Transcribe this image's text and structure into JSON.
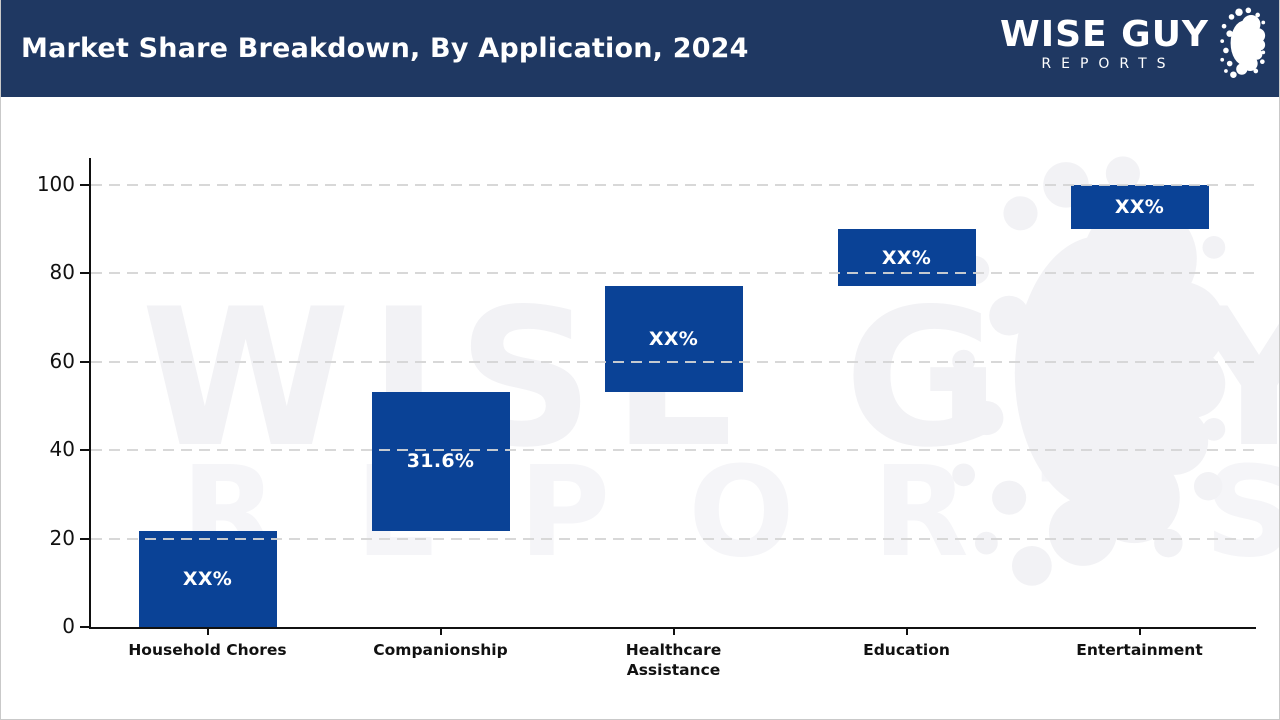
{
  "header": {
    "logo": {
      "line1": "WISE GUY",
      "line2": "REPORTS",
      "icon": "dotted-head-profile"
    }
  },
  "watermark": {
    "line1": "WISE GUY",
    "line2": "REPORTS"
  },
  "colors": {
    "header_bg": "#1f3862",
    "bar": "#0a4296",
    "gridline": "#d5d5d5",
    "watermark": "#f2f2f5",
    "axis": "#111111",
    "bar_label_text": "#ffffff"
  },
  "chart_data": {
    "type": "bar",
    "subtype": "floating-waterfall",
    "title": "Market Share Breakdown, By Application, 2024",
    "categories": [
      "Household Chores",
      "Companionship",
      "Healthcare Assistance",
      "Education",
      "Entertainment"
    ],
    "series": [
      {
        "name": "Market Share",
        "segments": [
          {
            "start": 0,
            "end": 21.6
          },
          {
            "start": 21.6,
            "end": 53.2
          },
          {
            "start": 53.2,
            "end": 77.0
          },
          {
            "start": 77.0,
            "end": 89.9
          },
          {
            "start": 89.9,
            "end": 100
          }
        ]
      }
    ],
    "values_pct": [
      21.6,
      31.6,
      23.8,
      12.9,
      10.1
    ],
    "bar_labels": [
      "XX%",
      "31.6%",
      "XX%",
      "XX%",
      "XX%"
    ],
    "xlabel": "",
    "ylabel": "",
    "ylim": [
      0,
      100
    ],
    "yticks": [
      0,
      20,
      40,
      60,
      80,
      100
    ],
    "grid": "dashed-horizontal",
    "legend": "none"
  }
}
